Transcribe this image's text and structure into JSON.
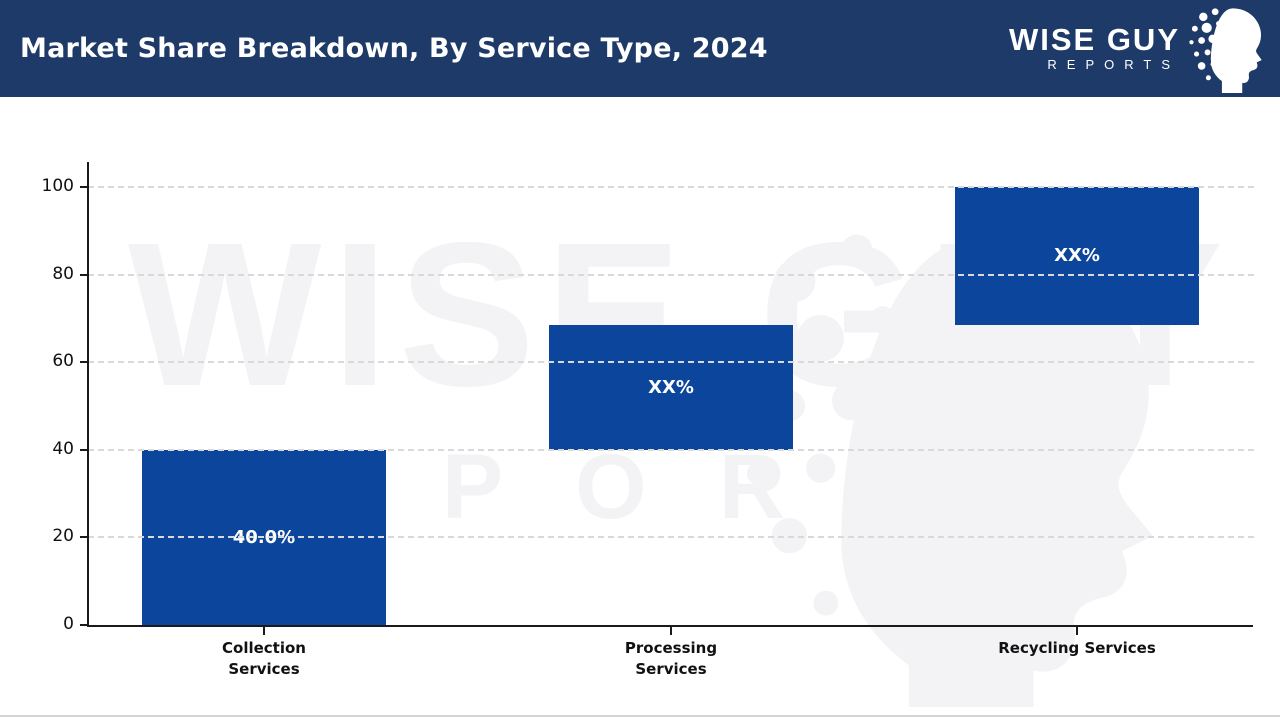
{
  "header": {
    "title": "Market Share Breakdown, By Service Type, 2024",
    "logo": {
      "line1": "WISE GUY",
      "line2": "REPORTS",
      "face_icon": "wiseguy-face-icon"
    }
  },
  "watermark": {
    "line1": "WISE GUY",
    "line2": "REPORTS"
  },
  "colors": {
    "header_bg": "#1e3a68",
    "bar_blue": "#0b459c",
    "gridline": "#d9d9d9",
    "watermark": "#f3f3f5"
  },
  "chart_data": {
    "type": "waterfall",
    "title": "Market Share Breakdown, By Service Type, 2024",
    "categories": [
      "Collection Services",
      "Processing Services",
      "Recycling Services"
    ],
    "x_tick_labels": [
      [
        "Collection",
        "Services"
      ],
      [
        "Processing",
        "Services"
      ],
      [
        "Recycling Services"
      ]
    ],
    "segments": [
      {
        "category": "Collection Services",
        "start": 0,
        "end": 40,
        "value": 40,
        "value_label": "40.0%"
      },
      {
        "category": "Processing Services",
        "start": 40,
        "end": 68.5,
        "value": 28.5,
        "value_label": "XX%"
      },
      {
        "category": "Recycling Services",
        "start": 68.5,
        "end": 100,
        "value": 31.5,
        "value_label": "XX%"
      }
    ],
    "values": [
      40,
      28.5,
      31.5
    ],
    "yticks": [
      0,
      20,
      40,
      60,
      80,
      100
    ],
    "ylim": [
      0,
      100
    ],
    "xlabel": "",
    "ylabel": "",
    "bar_color": "#0b459c",
    "grid": "horizontal-dashed",
    "legend": "none"
  }
}
